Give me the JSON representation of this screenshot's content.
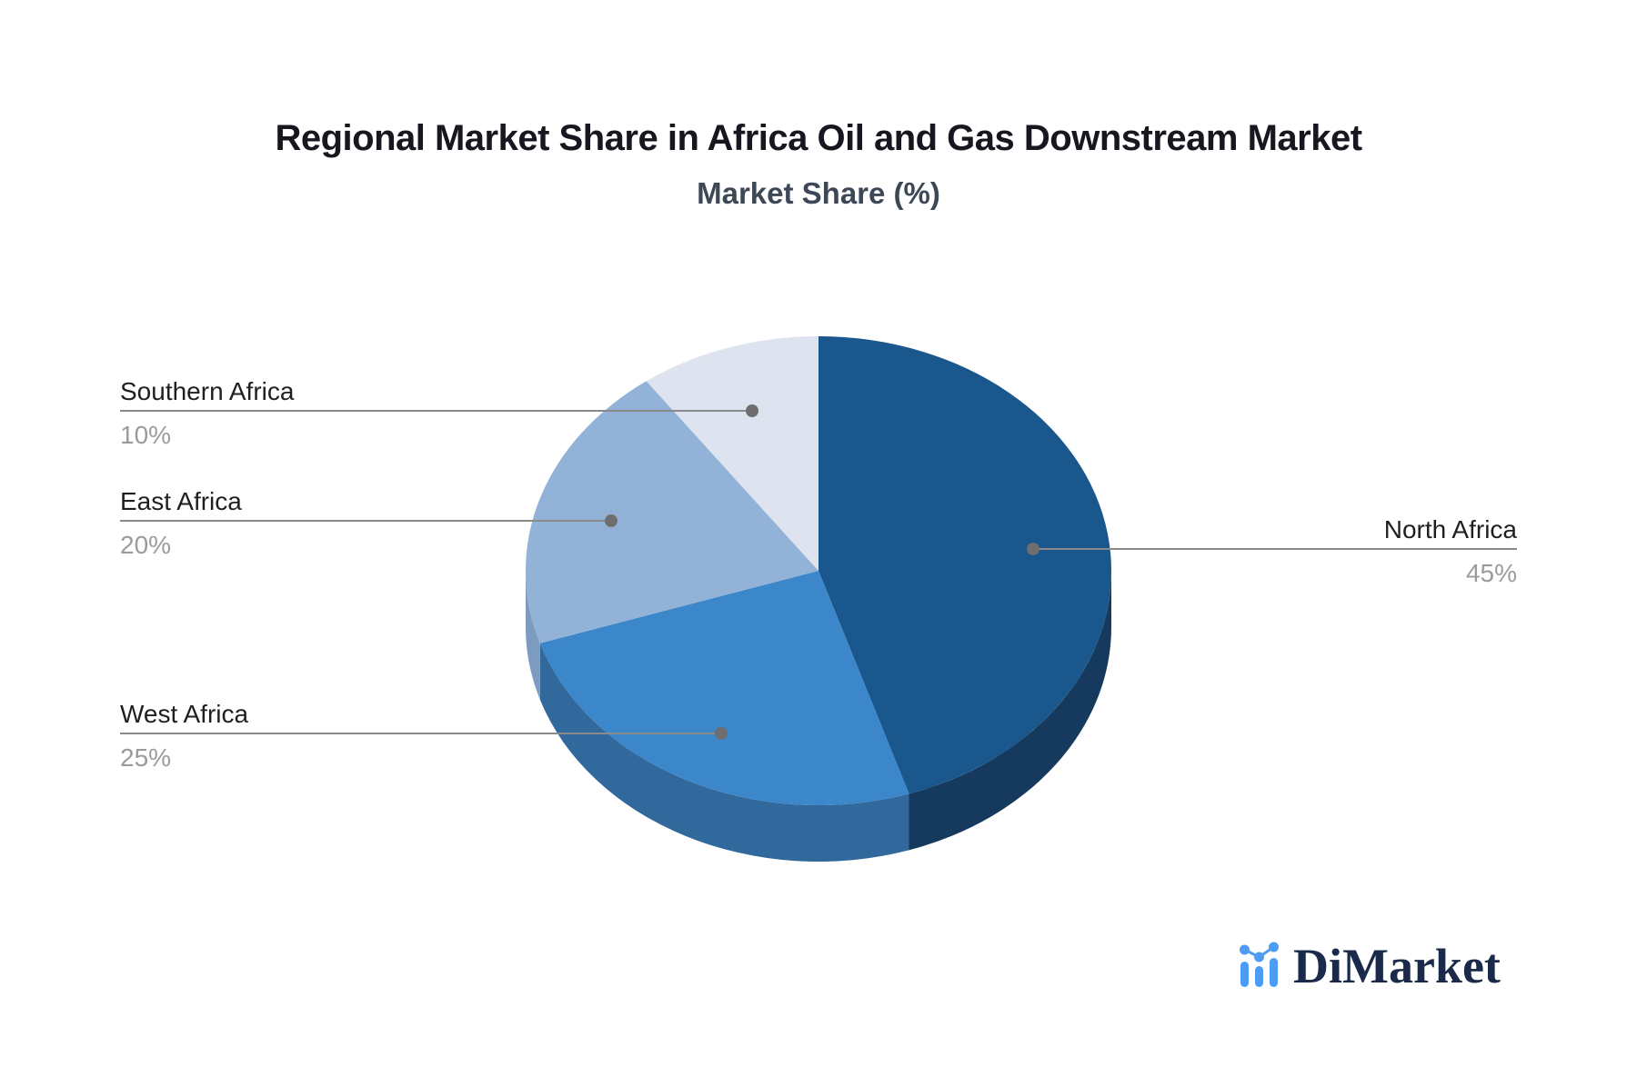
{
  "page": {
    "background_color": "#FFFFFF"
  },
  "header": {
    "title": "Regional Market Share in Africa Oil and Gas Downstream Market",
    "subtitle": "Market Share (%)"
  },
  "chart_data": {
    "type": "pie",
    "style": "3d-pie",
    "title": "Regional Market Share in Africa Oil and Gas Downstream Market",
    "subtitle": "Market Share (%)",
    "unit": "%",
    "direction": "clockwise",
    "start_angle_deg": 0,
    "legend_position": "outside-callouts",
    "slices": [
      {
        "label": "North Africa",
        "value": 45,
        "value_text": "45%",
        "color": "#1A578C",
        "side_color": "#163A5E",
        "callout_side": "right"
      },
      {
        "label": "West Africa",
        "value": 25,
        "value_text": "25%",
        "color": "#3C87C9",
        "side_color": "#31699C",
        "callout_side": "left"
      },
      {
        "label": "East Africa",
        "value": 20,
        "value_text": "20%",
        "color": "#92B3D7",
        "side_color": "#7D9BBE",
        "callout_side": "left"
      },
      {
        "label": "Southern Africa",
        "value": 10,
        "value_text": "10%",
        "color": "#DEE4EF",
        "side_color": "#C9D3E3",
        "callout_side": "left"
      }
    ],
    "callout_line_color": "#8A8A8A",
    "callout_dot_color": "#6E6E6E",
    "label_color": "#1F1F1F",
    "value_color": "#9B9B9B"
  },
  "colors": {
    "title": "#17171F",
    "subtitle": "#3D4857",
    "background": "#FFFFFF"
  },
  "logo": {
    "text": "DiMarket",
    "icon": "bar-line-chart-icon",
    "icon_color": "#4D9DF6",
    "text_color": "#1B2A4A"
  }
}
